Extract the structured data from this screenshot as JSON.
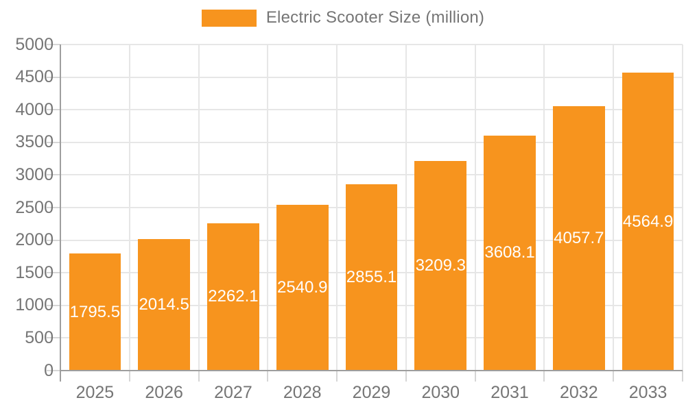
{
  "legend": {
    "label": "Electric Scooter Size (million)",
    "swatch_color": "#F7941E"
  },
  "chart_data": {
    "type": "bar",
    "title": "Electric Scooter Size (million)",
    "categories": [
      "2025",
      "2026",
      "2027",
      "2028",
      "2029",
      "2030",
      "2031",
      "2032",
      "2033"
    ],
    "series": [
      {
        "name": "Electric Scooter Size (million)",
        "values": [
          1795.5,
          2014.5,
          2262.1,
          2540.9,
          2855.1,
          3209.3,
          3608.1,
          4057.7,
          4564.9
        ]
      }
    ],
    "xlabel": "",
    "ylabel": "",
    "ylim": [
      0,
      5000
    ],
    "ytick_step": 500,
    "grid": true,
    "legend_position": "top",
    "bar_color": "#F7941E",
    "bar_label_color": "#FFFFFF",
    "axis_text_color": "#757575",
    "gridline_color": "#E6E6E6",
    "axis_line_color": "#9E9E9E"
  }
}
